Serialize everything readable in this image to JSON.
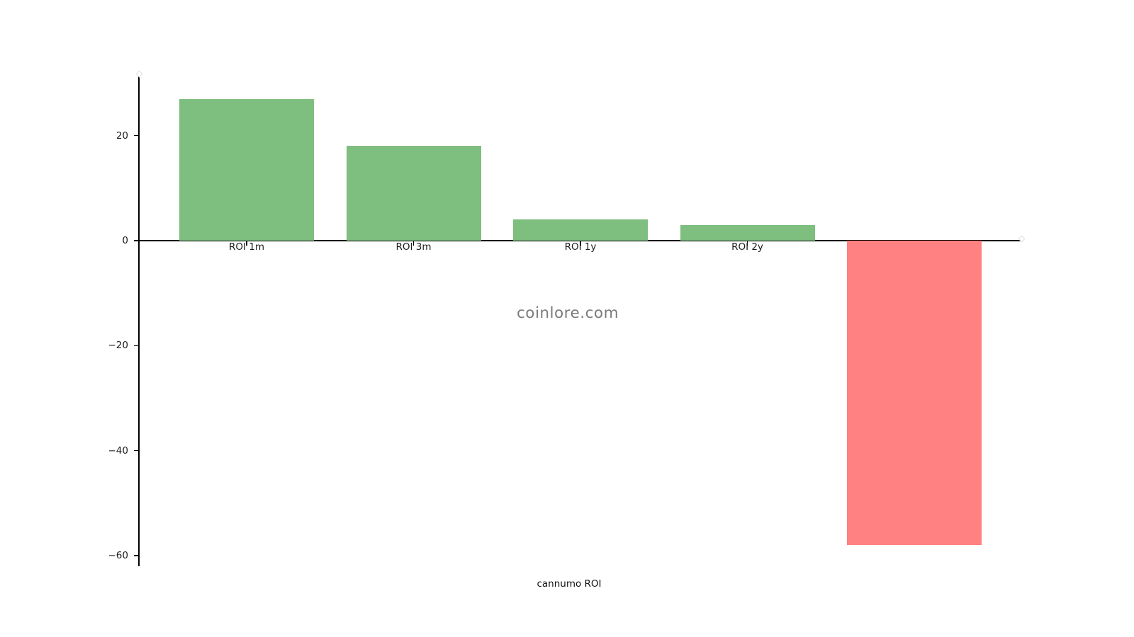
{
  "chart_data": {
    "type": "bar",
    "title": "",
    "xlabel": "cannumo ROI",
    "ylabel": "",
    "categories": [
      "ROI 1m",
      "ROI 3m",
      "ROI 1y",
      "ROI 2y",
      ""
    ],
    "values": [
      27,
      18,
      4,
      3,
      -58
    ],
    "bar_colors": [
      "#7ebe7e",
      "#7ebe7e",
      "#7ebe7e",
      "#7ebe7e",
      "#ff8181"
    ],
    "positive_color": "#7ebe7e",
    "negative_color": "#ff8181",
    "yticks": [
      20,
      0,
      -20,
      -40,
      -60
    ],
    "ytick_labels": [
      "20",
      "0",
      "−20",
      "−40",
      "−60"
    ],
    "ylim": [
      -62,
      31
    ],
    "grid": false,
    "legend": false,
    "axis_color": "#000000",
    "tick_label_color": "#1a1a1a",
    "watermark": "coinlore.com",
    "watermark_color": "#7b7b7b"
  }
}
